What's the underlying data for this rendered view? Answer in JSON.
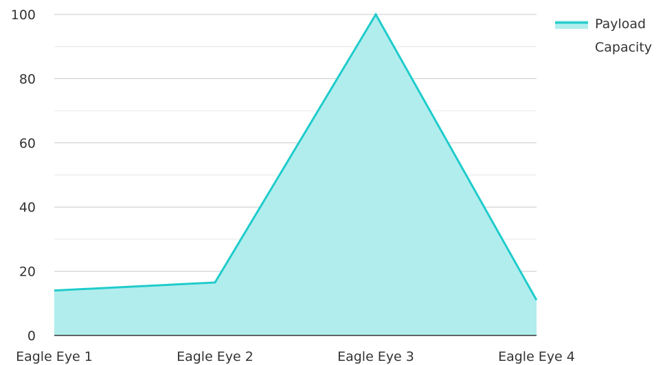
{
  "chart_data": {
    "type": "area",
    "categories": [
      "Eagle Eye 1",
      "Eagle Eye 2",
      "Eagle Eye 3",
      "Eagle Eye 4"
    ],
    "series": [
      {
        "name": "Payload Capacity",
        "values": [
          14,
          16.5,
          100,
          11
        ]
      }
    ],
    "ylim": [
      0,
      100
    ],
    "yticks": [
      0,
      20,
      40,
      60,
      80,
      100
    ],
    "grid": true,
    "legend_position": "top-right",
    "title": "",
    "xlabel": "",
    "ylabel": ""
  },
  "legend": {
    "line1": "Payload",
    "line2": "Capacity"
  },
  "colors": {
    "line": "#1ECBCB",
    "fill": "#B2EDED",
    "grid_major": "#C8C8C8",
    "grid_minor": "#E6E6E6",
    "axis": "#333333"
  }
}
